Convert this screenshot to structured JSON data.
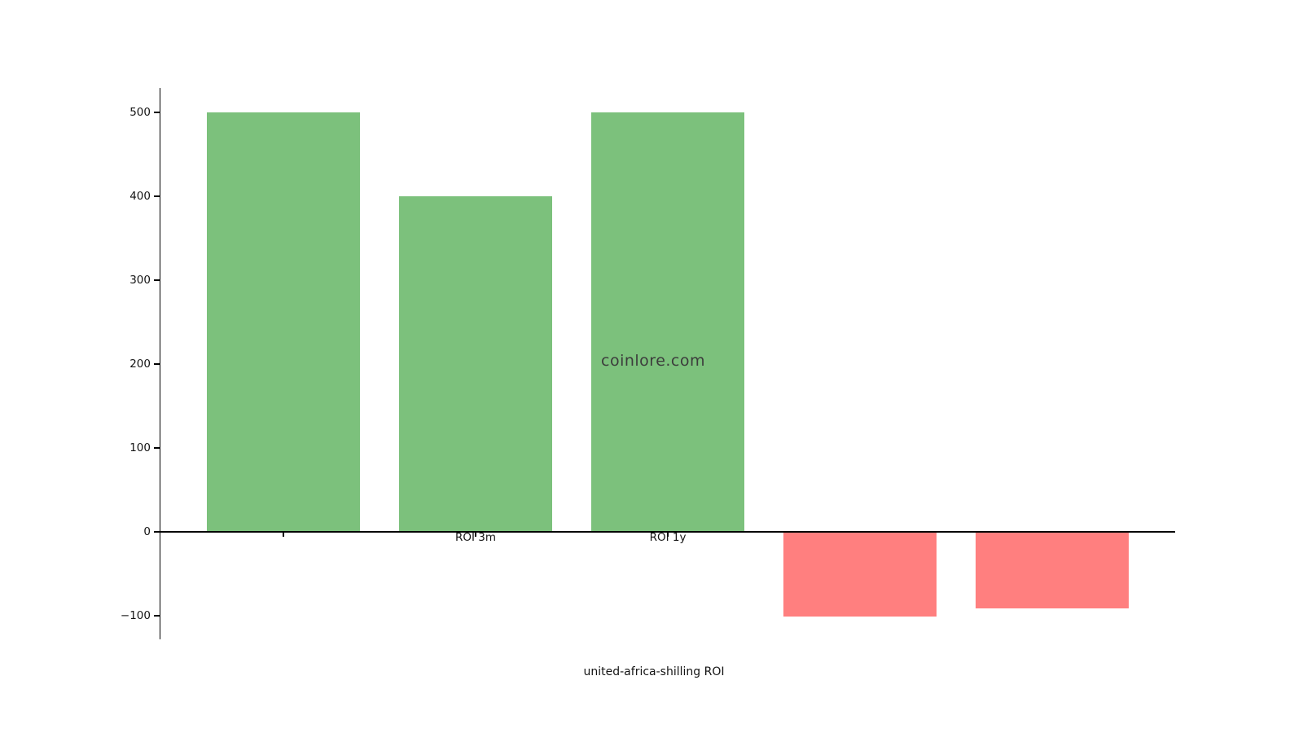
{
  "watermark": "coinlore.com",
  "colors": {
    "positive_bar": "#7cc17c",
    "negative_bar": "#ff7f7f",
    "axis": "#000000",
    "tick_text": "#141414",
    "watermark_text": "#3c3c3c",
    "background": "#ffffff"
  },
  "chart_data": {
    "type": "bar",
    "title": "united-africa-shilling ROI",
    "xlabel": "united-africa-shilling ROI",
    "ylabel": "",
    "categories": [
      "",
      "ROI 3m",
      "ROI 1y",
      "",
      ""
    ],
    "values": [
      500,
      400,
      500,
      -100,
      -90
    ],
    "bar_colors": [
      "#7cc17c",
      "#7cc17c",
      "#7cc17c",
      "#ff7f7f",
      "#ff7f7f"
    ],
    "xticks_visible": [
      true,
      true,
      true,
      false,
      false
    ],
    "yticks": [
      500,
      400,
      300,
      200,
      100,
      0,
      -100
    ],
    "ylim": [
      -128,
      529
    ],
    "xlim": [
      -0.64,
      4.64
    ],
    "bar_width": 0.8,
    "grid": false,
    "legend": "none"
  }
}
